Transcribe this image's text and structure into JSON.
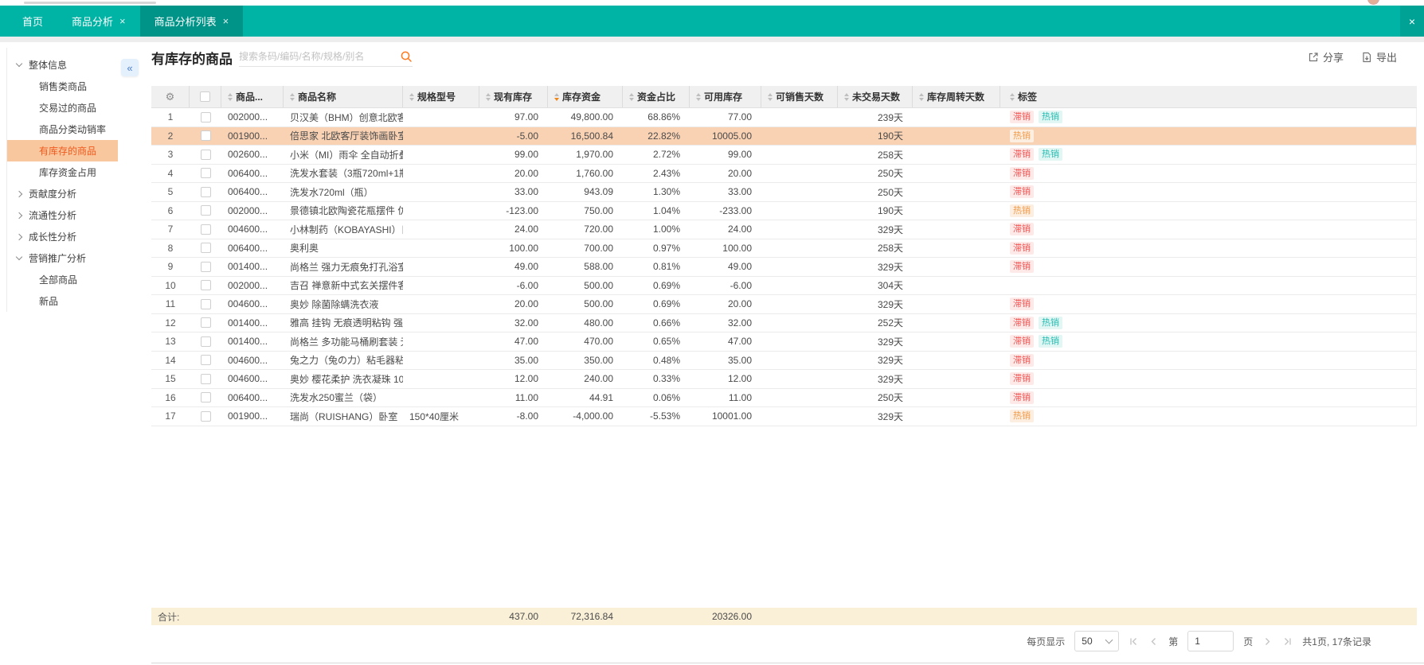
{
  "topbar": {
    "window_close": "×",
    "tabs": [
      {
        "label": "首页",
        "closable": false,
        "active": false
      },
      {
        "label": "商品分析",
        "closable": true,
        "active": false
      },
      {
        "label": "商品分析列表",
        "closable": true,
        "active": true
      }
    ]
  },
  "sidebar": {
    "collapse": "«",
    "items": [
      {
        "label": "整体信息",
        "level": 1,
        "arrow": "down",
        "selected": false
      },
      {
        "label": "销售类商品",
        "level": 2,
        "arrow": "none",
        "selected": false
      },
      {
        "label": "交易过的商品",
        "level": 2,
        "arrow": "none",
        "selected": false
      },
      {
        "label": "商品分类动销率",
        "level": 2,
        "arrow": "none",
        "selected": false
      },
      {
        "label": "有库存的商品",
        "level": 2,
        "arrow": "none",
        "selected": true
      },
      {
        "label": "库存资金占用",
        "level": 2,
        "arrow": "none",
        "selected": false
      },
      {
        "label": "贡献度分析",
        "level": 1,
        "arrow": "right",
        "selected": false
      },
      {
        "label": "流通性分析",
        "level": 1,
        "arrow": "right",
        "selected": false
      },
      {
        "label": "成长性分析",
        "level": 1,
        "arrow": "right",
        "selected": false
      },
      {
        "label": "营销推广分析",
        "level": 1,
        "arrow": "down",
        "selected": false
      },
      {
        "label": "全部商品",
        "level": 2,
        "arrow": "none",
        "selected": false
      },
      {
        "label": "新品",
        "level": 2,
        "arrow": "none",
        "selected": false
      }
    ]
  },
  "toolbar": {
    "title": "有库存的商品",
    "search_placeholder": "搜索条码/编码/名称/规格/别名",
    "share_label": "分享",
    "export_label": "导出"
  },
  "table": {
    "columns": [
      {
        "label": "",
        "type": "gear"
      },
      {
        "label": "",
        "type": "checkbox"
      },
      {
        "label": "商品...",
        "sortable": true
      },
      {
        "label": "商品名称",
        "sortable": true
      },
      {
        "label": "规格型号",
        "sortable": true
      },
      {
        "label": "现有库存",
        "sortable": true
      },
      {
        "label": "库存资金",
        "sortable": true,
        "sorted": "desc"
      },
      {
        "label": "资金占比",
        "sortable": true
      },
      {
        "label": "可用库存",
        "sortable": true
      },
      {
        "label": "可销售天数",
        "sortable": true
      },
      {
        "label": "未交易天数",
        "sortable": true
      },
      {
        "label": "库存周转天数",
        "sortable": true
      },
      {
        "label": "标签",
        "sortable": true
      }
    ],
    "rows": [
      {
        "idx": "1",
        "code": "002000...",
        "name": "贝汉美（BHM）创意北欧客",
        "spec": "",
        "stock": "97.00",
        "fund": "49,800.00",
        "ratio": "68.86%",
        "avail": "77.00",
        "sell_days": "",
        "no_trade_days": "239天",
        "turn_days": "",
        "highlight": false,
        "tags": [
          {
            "label": "滞销",
            "style": "red"
          },
          {
            "label": "热销",
            "style": "teal"
          }
        ]
      },
      {
        "idx": "2",
        "code": "001900...",
        "name": "倍思家 北欧客厅装饰画卧室",
        "spec": "",
        "stock": "-5.00",
        "fund": "16,500.84",
        "ratio": "22.82%",
        "avail": "10005.00",
        "sell_days": "",
        "no_trade_days": "190天",
        "turn_days": "",
        "highlight": true,
        "tags": [
          {
            "label": "热销",
            "style": "orange"
          }
        ]
      },
      {
        "idx": "3",
        "code": "002600...",
        "name": "小米（MI）雨伞 全自动折叠",
        "spec": "",
        "stock": "99.00",
        "fund": "1,970.00",
        "ratio": "2.72%",
        "avail": "99.00",
        "sell_days": "",
        "no_trade_days": "258天",
        "turn_days": "",
        "highlight": false,
        "tags": [
          {
            "label": "滞销",
            "style": "red"
          },
          {
            "label": "热销",
            "style": "teal"
          }
        ]
      },
      {
        "idx": "4",
        "code": "006400...",
        "name": "洗发水套装（3瓶720ml+1瓶",
        "spec": "",
        "stock": "20.00",
        "fund": "1,760.00",
        "ratio": "2.43%",
        "avail": "20.00",
        "sell_days": "",
        "no_trade_days": "250天",
        "turn_days": "",
        "highlight": false,
        "tags": [
          {
            "label": "滞销",
            "style": "red"
          }
        ]
      },
      {
        "idx": "5",
        "code": "006400...",
        "name": "洗发水720ml（瓶）",
        "spec": "",
        "stock": "33.00",
        "fund": "943.09",
        "ratio": "1.30%",
        "avail": "33.00",
        "sell_days": "",
        "no_trade_days": "250天",
        "turn_days": "",
        "highlight": false,
        "tags": [
          {
            "label": "滞销",
            "style": "red"
          }
        ]
      },
      {
        "idx": "6",
        "code": "002000...",
        "name": "景德镇北欧陶瓷花瓶摆件 仿",
        "spec": "",
        "stock": "-123.00",
        "fund": "750.00",
        "ratio": "1.04%",
        "avail": "-233.00",
        "sell_days": "",
        "no_trade_days": "190天",
        "turn_days": "",
        "highlight": false,
        "tags": [
          {
            "label": "热销",
            "style": "orange"
          }
        ]
      },
      {
        "idx": "7",
        "code": "004600...",
        "name": "小林制药（KOBAYASHI）日",
        "spec": "",
        "stock": "24.00",
        "fund": "720.00",
        "ratio": "1.00%",
        "avail": "24.00",
        "sell_days": "",
        "no_trade_days": "329天",
        "turn_days": "",
        "highlight": false,
        "tags": [
          {
            "label": "滞销",
            "style": "red"
          }
        ]
      },
      {
        "idx": "8",
        "code": "006400...",
        "name": "奥利奥",
        "spec": "",
        "stock": "100.00",
        "fund": "700.00",
        "ratio": "0.97%",
        "avail": "100.00",
        "sell_days": "",
        "no_trade_days": "258天",
        "turn_days": "",
        "highlight": false,
        "tags": [
          {
            "label": "滞销",
            "style": "red"
          }
        ]
      },
      {
        "idx": "9",
        "code": "001400...",
        "name": "尚格兰 强力无痕免打孔浴室",
        "spec": "",
        "stock": "49.00",
        "fund": "588.00",
        "ratio": "0.81%",
        "avail": "49.00",
        "sell_days": "",
        "no_trade_days": "329天",
        "turn_days": "",
        "highlight": false,
        "tags": [
          {
            "label": "滞销",
            "style": "red"
          }
        ]
      },
      {
        "idx": "10",
        "code": "002000...",
        "name": "吉召 禅意新中式玄关摆件客",
        "spec": "",
        "stock": "-6.00",
        "fund": "500.00",
        "ratio": "0.69%",
        "avail": "-6.00",
        "sell_days": "",
        "no_trade_days": "304天",
        "turn_days": "",
        "highlight": false,
        "tags": []
      },
      {
        "idx": "11",
        "code": "004600...",
        "name": "奥妙 除菌除螨洗衣液",
        "spec": "",
        "stock": "20.00",
        "fund": "500.00",
        "ratio": "0.69%",
        "avail": "20.00",
        "sell_days": "",
        "no_trade_days": "329天",
        "turn_days": "",
        "highlight": false,
        "tags": [
          {
            "label": "滞销",
            "style": "red"
          }
        ]
      },
      {
        "idx": "12",
        "code": "001400...",
        "name": "雅高 挂钩 无痕透明粘钩 强",
        "spec": "",
        "stock": "32.00",
        "fund": "480.00",
        "ratio": "0.66%",
        "avail": "32.00",
        "sell_days": "",
        "no_trade_days": "252天",
        "turn_days": "",
        "highlight": false,
        "tags": [
          {
            "label": "滞销",
            "style": "red"
          },
          {
            "label": "热销",
            "style": "teal"
          }
        ]
      },
      {
        "idx": "13",
        "code": "001400...",
        "name": "尚格兰 多功能马桶刷套装 无",
        "spec": "",
        "stock": "47.00",
        "fund": "470.00",
        "ratio": "0.65%",
        "avail": "47.00",
        "sell_days": "",
        "no_trade_days": "329天",
        "turn_days": "",
        "highlight": false,
        "tags": [
          {
            "label": "滞销",
            "style": "red"
          },
          {
            "label": "热销",
            "style": "teal"
          }
        ]
      },
      {
        "idx": "14",
        "code": "004600...",
        "name": "兔之力（兔の力）粘毛器粘",
        "spec": "",
        "stock": "35.00",
        "fund": "350.00",
        "ratio": "0.48%",
        "avail": "35.00",
        "sell_days": "",
        "no_trade_days": "329天",
        "turn_days": "",
        "highlight": false,
        "tags": [
          {
            "label": "滞销",
            "style": "red"
          }
        ]
      },
      {
        "idx": "15",
        "code": "004600...",
        "name": "奥妙 樱花柔护 洗衣凝珠 10",
        "spec": "",
        "stock": "12.00",
        "fund": "240.00",
        "ratio": "0.33%",
        "avail": "12.00",
        "sell_days": "",
        "no_trade_days": "329天",
        "turn_days": "",
        "highlight": false,
        "tags": [
          {
            "label": "滞销",
            "style": "red"
          }
        ]
      },
      {
        "idx": "16",
        "code": "006400...",
        "name": "洗发水250蜜兰（袋）",
        "spec": "",
        "stock": "11.00",
        "fund": "44.91",
        "ratio": "0.06%",
        "avail": "11.00",
        "sell_days": "",
        "no_trade_days": "250天",
        "turn_days": "",
        "highlight": false,
        "tags": [
          {
            "label": "滞销",
            "style": "red"
          }
        ]
      },
      {
        "idx": "17",
        "code": "001900...",
        "name": "瑞尚（RUISHANG）卧室",
        "spec": "150*40厘米",
        "stock": "-8.00",
        "fund": "-4,000.00",
        "ratio": "-5.53%",
        "avail": "10001.00",
        "sell_days": "",
        "no_trade_days": "329天",
        "turn_days": "",
        "highlight": false,
        "tags": [
          {
            "label": "热销",
            "style": "orange"
          }
        ]
      }
    ]
  },
  "summary": {
    "label": "合计:",
    "stock_total": "437.00",
    "fund_total": "72,316.84",
    "avail_total": "20326.00"
  },
  "pagination": {
    "per_page_label": "每页显示",
    "per_page": "50",
    "page_prefix": "第",
    "page": "1",
    "page_suffix": "页",
    "total_text": "共1页, 17条记录"
  },
  "colors": {
    "accent_teal": "#00b4a5",
    "active_tab_teal": "#009488",
    "sidebar_selected_bg": "#f9c79d",
    "sidebar_selected_text": "#ee5a1f",
    "row_highlight": "#f9d2b4",
    "tag_red": "#f45352",
    "tag_teal": "#26bdb2",
    "tag_orange": "#f59a49",
    "summary_bg": "#faf0d8",
    "sort_active": "#f08519",
    "search_icon": "#ff7a1f"
  }
}
